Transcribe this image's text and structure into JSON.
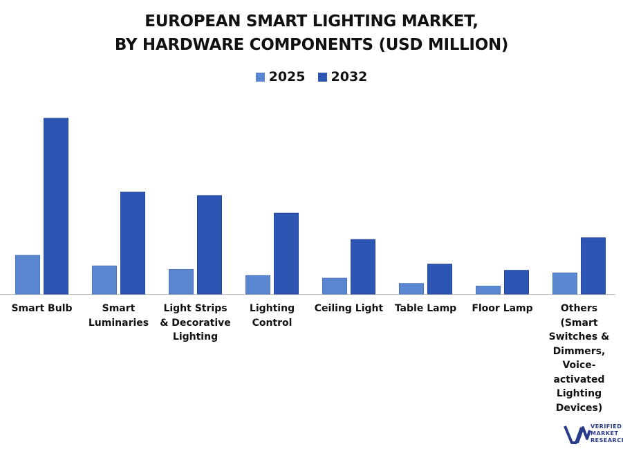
{
  "chart_data": {
    "type": "bar",
    "title_lines": [
      "EUROPEAN SMART LIGHTING MARKET,",
      "BY HARDWARE COMPONENTS (USD MILLION)"
    ],
    "categories": [
      "Smart Bulb",
      "Smart Luminaries",
      "Light Strips & Decorative Lighting",
      "Lighting Control",
      "Ceiling Light",
      "Table Lamp",
      "Floor Lamp",
      "Others (Smart Switches & Dimmers, Voice-activated Lighting Devices)"
    ],
    "series": [
      {
        "name": "2025",
        "color": "#5b87d1",
        "values": [
          22,
          16,
          14,
          10.5,
          9,
          6,
          4.5,
          12
        ]
      },
      {
        "name": "2032",
        "color": "#2d55b3",
        "values": [
          100,
          58,
          56,
          46,
          31,
          17,
          13.5,
          32
        ]
      }
    ],
    "xlabel": "",
    "ylabel": "",
    "ylim": [
      0,
      100
    ],
    "grid": false,
    "legend": "top-center"
  },
  "logo": {
    "line1": "VERIFIED",
    "line2": "MARKET",
    "line3": "RESEARCH",
    "brand_color": "#2a3a8a",
    "accent_color": "#d6336c"
  }
}
